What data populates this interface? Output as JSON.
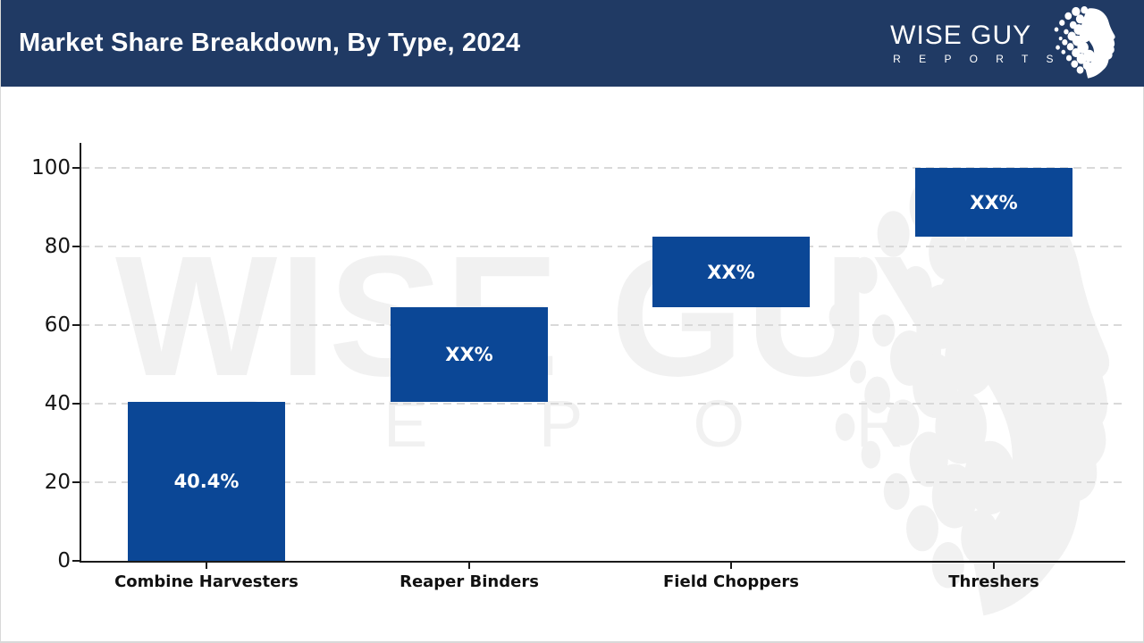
{
  "header": {
    "title": "Market Share Breakdown, By Type, 2024",
    "logo": {
      "line1": "WISE GUY",
      "line2": "R E P O R T S"
    }
  },
  "watermark": {
    "line1": "WISE GUY",
    "line2": "R E P O R T S"
  },
  "colors": {
    "header_bg": "#203A64",
    "bar": "#0B4796",
    "watermark": "#F1F1F1",
    "gridline": "#D9D9D9",
    "axis": "#1A1A1A",
    "bar_label": "#FFFFFF"
  },
  "chart_data": {
    "type": "bar",
    "subtype": "waterfall",
    "title": "Market Share Breakdown, By Type, 2024",
    "categories": [
      "Combine Harvesters",
      "Reaper Binders",
      "Field Choppers",
      "Threshers"
    ],
    "bar_starts": [
      0,
      40.4,
      64.5,
      82.5
    ],
    "bar_ends": [
      40.4,
      64.5,
      82.5,
      100
    ],
    "values": [
      40.4,
      24.1,
      18,
      17.5
    ],
    "bar_labels": [
      "40.4%",
      "XX%",
      "XX%",
      "XX%"
    ],
    "xlabel": "",
    "ylabel": "",
    "ylim": [
      0,
      106.5
    ],
    "yticks": [
      0,
      20,
      40,
      60,
      80,
      100
    ],
    "grid": "horizontal-dashed",
    "legend": "none"
  }
}
